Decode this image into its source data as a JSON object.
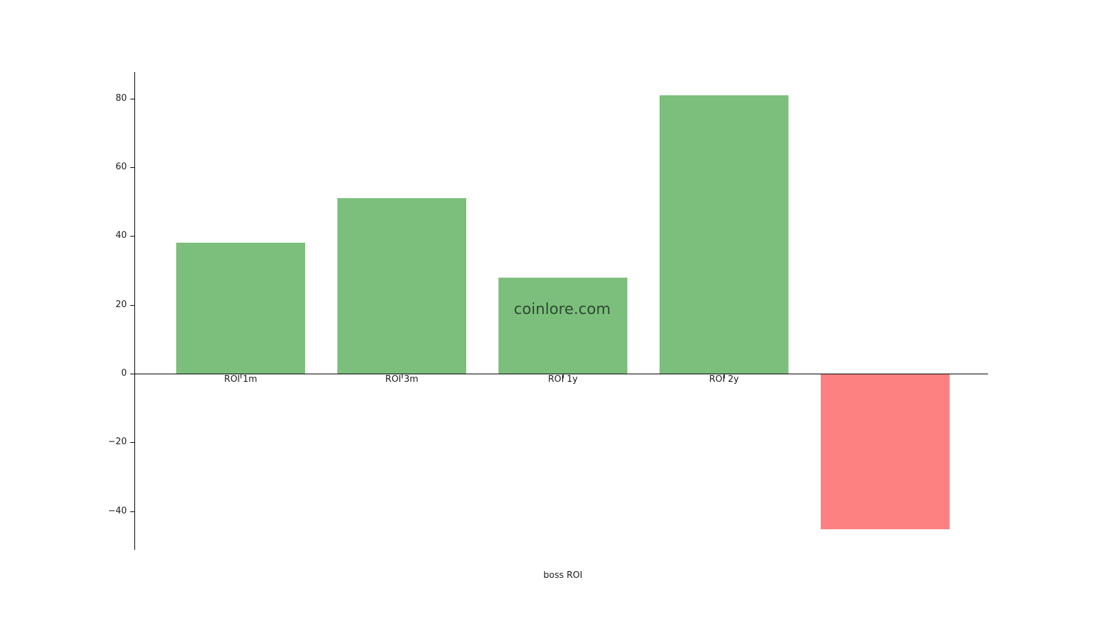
{
  "page": {
    "background": "#ffffff"
  },
  "chart_data": {
    "type": "bar",
    "categories": [
      "ROI 1m",
      "ROI 3m",
      "ROI 1y",
      "ROI 2y",
      ""
    ],
    "values": [
      38,
      51,
      28,
      81,
      -45
    ],
    "bar_colors": [
      "#7cbf7c",
      "#7cbf7c",
      "#7cbf7c",
      "#7cbf7c",
      "#fd8181"
    ],
    "positive_color": "#7cbf7c",
    "negative_color": "#fd8181",
    "title": "",
    "xlabel": "boss ROI",
    "ylabel": "",
    "yticks": [
      80,
      60,
      40,
      20,
      0,
      -20,
      -40
    ],
    "ylim": [
      -51,
      88
    ],
    "grid": false,
    "legend_position": "none",
    "axis_color": "#000000",
    "tick_label_color": "#1c1c1c",
    "watermark": {
      "text": "coinlore.com",
      "color": "rgba(24, 44, 33, 0.8)"
    }
  }
}
